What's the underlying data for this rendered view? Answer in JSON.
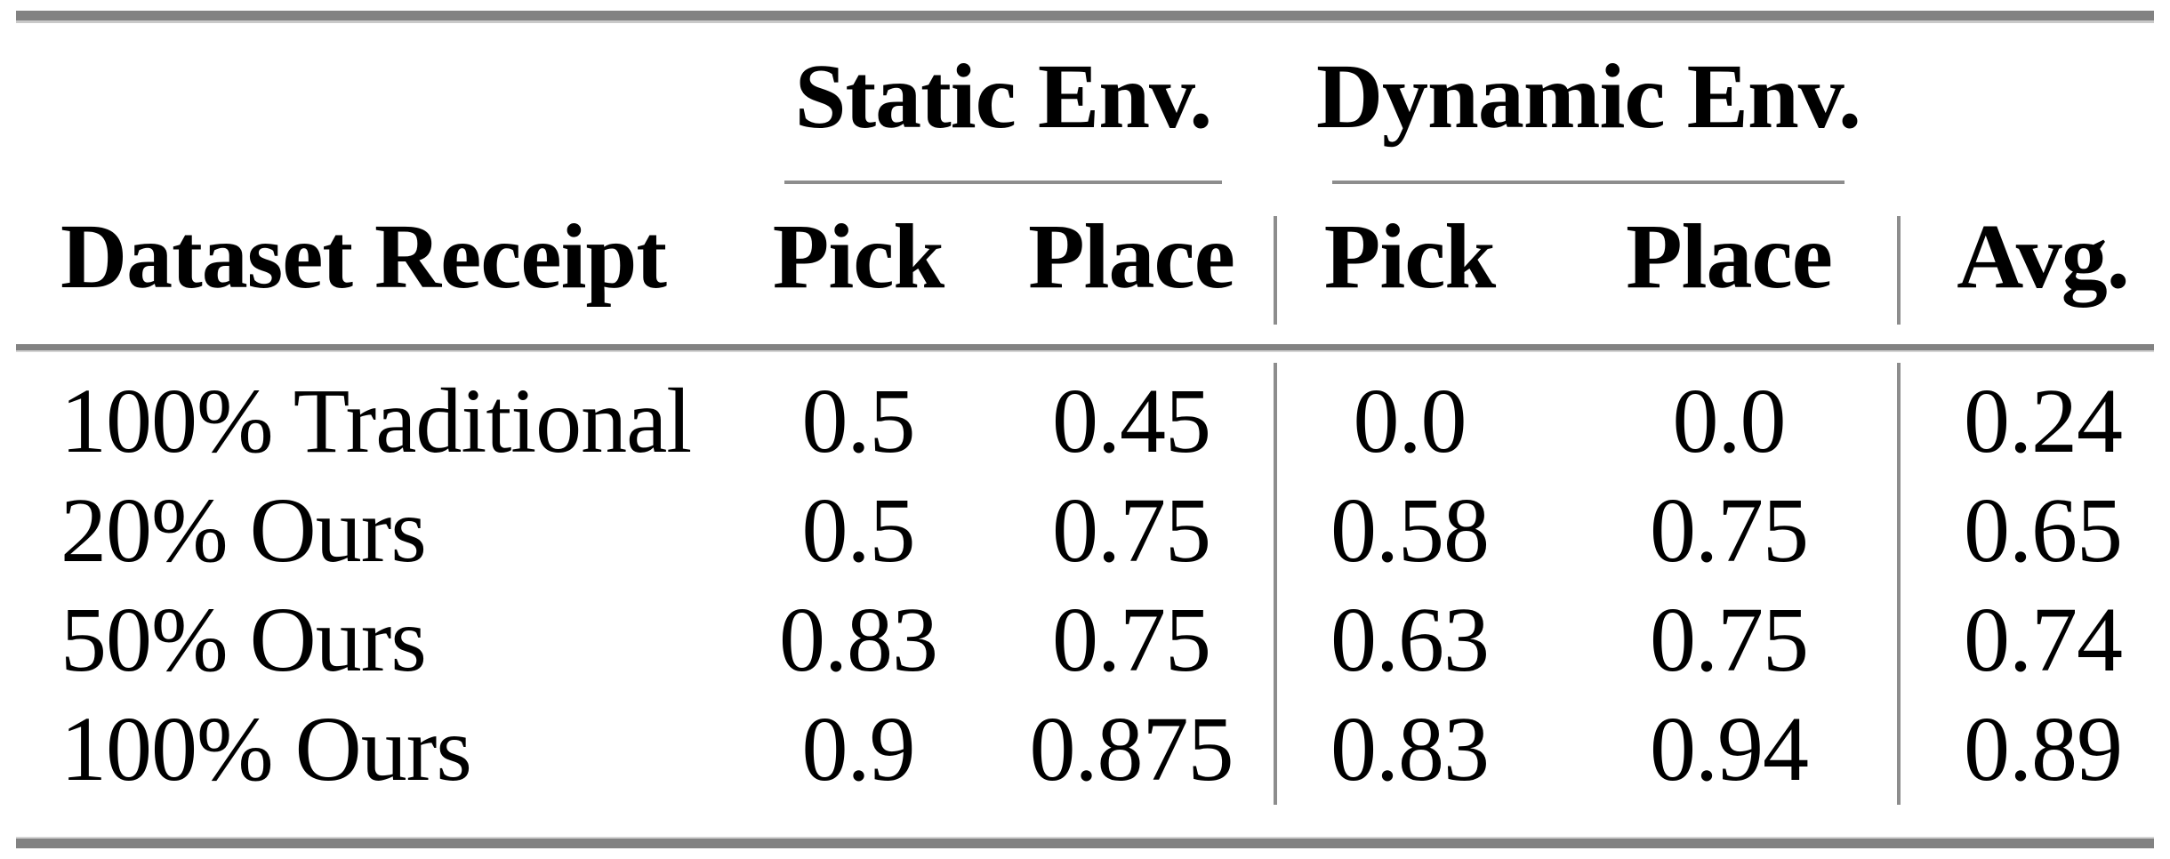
{
  "table": {
    "group_headers": {
      "static": "Static Env.",
      "dynamic": "Dynamic Env."
    },
    "columns": {
      "label": "Dataset Receipt",
      "s_pick": "Pick",
      "s_place": "Place",
      "d_pick": "Pick",
      "d_place": "Place",
      "avg": "Avg."
    },
    "rows": [
      {
        "label": "100% Traditional",
        "s_pick": "0.5",
        "s_place": "0.45",
        "d_pick": "0.0",
        "d_place": "0.0",
        "avg": "0.24"
      },
      {
        "label": "20% Ours",
        "s_pick": "0.5",
        "s_place": "0.75",
        "d_pick": "0.58",
        "d_place": "0.75",
        "avg": "0.65"
      },
      {
        "label": "50% Ours",
        "s_pick": "0.83",
        "s_place": "0.75",
        "d_pick": "0.63",
        "d_place": "0.75",
        "avg": "0.74"
      },
      {
        "label": "100% Ours",
        "s_pick": "0.9",
        "s_place": "0.875",
        "d_pick": "0.83",
        "d_place": "0.94",
        "avg": "0.89"
      }
    ],
    "colors": {
      "text": "#000000",
      "rule": "#828282",
      "divider": "#8d8d8d",
      "background": "#ffffff"
    }
  },
  "chart_data": {
    "type": "table",
    "title": "",
    "column_groups": [
      {
        "label": "Static Env.",
        "columns": [
          "Pick",
          "Place"
        ]
      },
      {
        "label": "Dynamic Env.",
        "columns": [
          "Pick",
          "Place"
        ]
      }
    ],
    "columns": [
      "Dataset Receipt",
      "Pick",
      "Place",
      "Pick",
      "Place",
      "Avg."
    ],
    "rows": [
      [
        "100% Traditional",
        0.5,
        0.45,
        0.0,
        0.0,
        0.24
      ],
      [
        "20% Ours",
        0.5,
        0.75,
        0.58,
        0.75,
        0.65
      ],
      [
        "50% Ours",
        0.83,
        0.75,
        0.63,
        0.75,
        0.74
      ],
      [
        "100% Ours",
        0.9,
        0.875,
        0.83,
        0.94,
        0.89
      ]
    ]
  }
}
